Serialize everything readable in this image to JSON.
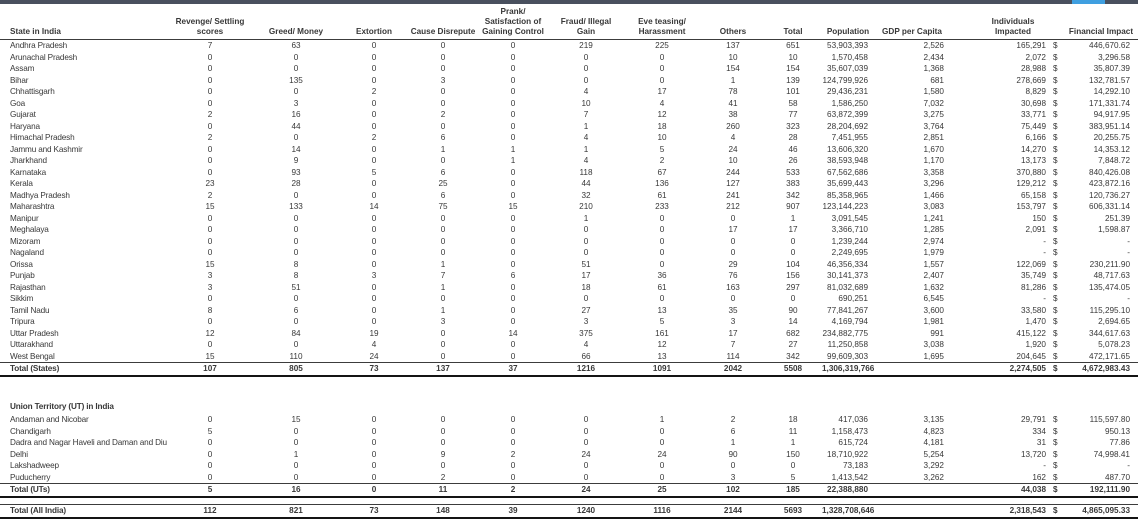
{
  "topbar": {
    "bar_color": "#49505e",
    "thumb_color": "#3f9fe0"
  },
  "currency_symbol": "$",
  "table": {
    "columns": [
      "State in India",
      "Revenge/ Settling scores",
      "Greed/ Money",
      "Extortion",
      "Cause Disrepute",
      "Prank/ Satisfaction of Gaining Control",
      "Fraud/ Illegal Gain",
      "Eve teasing/ Harassment",
      "Others",
      "Total",
      "Population",
      "GDP per Capita",
      "Individuals Impacted",
      "Financial Impact"
    ],
    "states": {
      "rows": [
        [
          "Andhra Pradesh",
          "7",
          "63",
          "0",
          "0",
          "0",
          "219",
          "225",
          "137",
          "651",
          "53,903,393",
          "2,526",
          "165,291",
          "446,670.62"
        ],
        [
          "Arunachal Pradesh",
          "0",
          "0",
          "0",
          "0",
          "0",
          "0",
          "0",
          "10",
          "10",
          "1,570,458",
          "2,434",
          "2,072",
          "3,296.58"
        ],
        [
          "Assam",
          "0",
          "0",
          "0",
          "0",
          "0",
          "0",
          "0",
          "154",
          "154",
          "35,607,039",
          "1,368",
          "28,988",
          "35,807.39"
        ],
        [
          "Bihar",
          "0",
          "135",
          "0",
          "3",
          "0",
          "0",
          "0",
          "1",
          "139",
          "124,799,926",
          "681",
          "278,669",
          "132,781.57"
        ],
        [
          "Chhattisgarh",
          "0",
          "0",
          "2",
          "0",
          "0",
          "4",
          "17",
          "78",
          "101",
          "29,436,231",
          "1,580",
          "8,829",
          "14,292.10"
        ],
        [
          "Goa",
          "0",
          "3",
          "0",
          "0",
          "0",
          "10",
          "4",
          "41",
          "58",
          "1,586,250",
          "7,032",
          "30,698",
          "171,331.74"
        ],
        [
          "Gujarat",
          "2",
          "16",
          "0",
          "2",
          "0",
          "7",
          "12",
          "38",
          "77",
          "63,872,399",
          "3,275",
          "33,771",
          "94,917.95"
        ],
        [
          "Haryana",
          "0",
          "44",
          "0",
          "0",
          "0",
          "1",
          "18",
          "260",
          "323",
          "28,204,692",
          "3,764",
          "75,449",
          "383,951.14"
        ],
        [
          "Himachal Pradesh",
          "2",
          "0",
          "2",
          "6",
          "0",
          "4",
          "10",
          "4",
          "28",
          "7,451,955",
          "2,851",
          "6,166",
          "20,255.75"
        ],
        [
          "Jammu and Kashmir",
          "0",
          "14",
          "0",
          "1",
          "1",
          "1",
          "5",
          "24",
          "46",
          "13,606,320",
          "1,670",
          "14,270",
          "14,353.12"
        ],
        [
          "Jharkhand",
          "0",
          "9",
          "0",
          "0",
          "1",
          "4",
          "2",
          "10",
          "26",
          "38,593,948",
          "1,170",
          "13,173",
          "7,848.72"
        ],
        [
          "Karnataka",
          "0",
          "93",
          "5",
          "6",
          "0",
          "118",
          "67",
          "244",
          "533",
          "67,562,686",
          "3,358",
          "370,880",
          "840,426.08"
        ],
        [
          "Kerala",
          "23",
          "28",
          "0",
          "25",
          "0",
          "44",
          "136",
          "127",
          "383",
          "35,699,443",
          "3,296",
          "129,212",
          "423,872.16"
        ],
        [
          "Madhya Pradesh",
          "2",
          "0",
          "0",
          "6",
          "0",
          "32",
          "61",
          "241",
          "342",
          "85,358,965",
          "1,466",
          "65,158",
          "120,736.27"
        ],
        [
          "Maharashtra",
          "15",
          "133",
          "14",
          "75",
          "15",
          "210",
          "233",
          "212",
          "907",
          "123,144,223",
          "3,083",
          "153,797",
          "606,331.14"
        ],
        [
          "Manipur",
          "0",
          "0",
          "0",
          "0",
          "0",
          "1",
          "0",
          "0",
          "1",
          "3,091,545",
          "1,241",
          "150",
          "251.39"
        ],
        [
          "Meghalaya",
          "0",
          "0",
          "0",
          "0",
          "0",
          "0",
          "0",
          "17",
          "17",
          "3,366,710",
          "1,285",
          "2,091",
          "1,598.87"
        ],
        [
          "Mizoram",
          "0",
          "0",
          "0",
          "0",
          "0",
          "0",
          "0",
          "0",
          "0",
          "1,239,244",
          "2,974",
          "-",
          "-"
        ],
        [
          "Nagaland",
          "0",
          "0",
          "0",
          "0",
          "0",
          "0",
          "0",
          "0",
          "0",
          "2,249,695",
          "1,979",
          "-",
          "-"
        ],
        [
          "Orissa",
          "15",
          "8",
          "0",
          "1",
          "0",
          "51",
          "0",
          "29",
          "104",
          "46,356,334",
          "1,557",
          "122,069",
          "230,211.90"
        ],
        [
          "Punjab",
          "3",
          "8",
          "3",
          "7",
          "6",
          "17",
          "36",
          "76",
          "156",
          "30,141,373",
          "2,407",
          "35,749",
          "48,717.63"
        ],
        [
          "Rajasthan",
          "3",
          "51",
          "0",
          "1",
          "0",
          "18",
          "61",
          "163",
          "297",
          "81,032,689",
          "1,632",
          "81,286",
          "135,474.05"
        ],
        [
          "Sikkim",
          "0",
          "0",
          "0",
          "0",
          "0",
          "0",
          "0",
          "0",
          "0",
          "690,251",
          "6,545",
          "-",
          "-"
        ],
        [
          "Tamil Nadu",
          "8",
          "6",
          "0",
          "1",
          "0",
          "27",
          "13",
          "35",
          "90",
          "77,841,267",
          "3,600",
          "33,580",
          "115,295.10"
        ],
        [
          "Tripura",
          "0",
          "0",
          "0",
          "3",
          "0",
          "3",
          "5",
          "3",
          "14",
          "4,169,794",
          "1,981",
          "1,470",
          "2,694.65"
        ],
        [
          "Uttar Pradesh",
          "12",
          "84",
          "19",
          "0",
          "14",
          "375",
          "161",
          "17",
          "682",
          "234,882,775",
          "991",
          "415,122",
          "344,617.63"
        ],
        [
          "Uttarakhand",
          "0",
          "0",
          "4",
          "0",
          "0",
          "4",
          "12",
          "7",
          "27",
          "11,250,858",
          "3,038",
          "1,920",
          "5,078.23"
        ],
        [
          "West Bengal",
          "15",
          "110",
          "24",
          "0",
          "0",
          "66",
          "13",
          "114",
          "342",
          "99,609,303",
          "1,695",
          "204,645",
          "472,171.65"
        ]
      ],
      "total": [
        "Total (States)",
        "107",
        "805",
        "73",
        "137",
        "37",
        "1216",
        "1091",
        "2042",
        "5508",
        "1,306,319,766",
        "",
        "2,274,505",
        "4,672,983.43"
      ]
    },
    "ut": {
      "section_label": "Union Territory (UT) in India",
      "rows": [
        [
          "Andaman and Nicobar",
          "0",
          "15",
          "0",
          "0",
          "0",
          "0",
          "1",
          "2",
          "18",
          "417,036",
          "3,135",
          "29,791",
          "115,597.80"
        ],
        [
          "Chandigarh",
          "5",
          "0",
          "0",
          "0",
          "0",
          "0",
          "0",
          "6",
          "11",
          "1,158,473",
          "4,823",
          "334",
          "950.13"
        ],
        [
          "Dadra and Nagar Haveli and Daman and Diu",
          "0",
          "0",
          "0",
          "0",
          "0",
          "0",
          "0",
          "1",
          "1",
          "615,724",
          "4,181",
          "31",
          "77.86"
        ],
        [
          "Delhi",
          "0",
          "1",
          "0",
          "9",
          "2",
          "24",
          "24",
          "90",
          "150",
          "18,710,922",
          "5,254",
          "13,720",
          "74,998.41"
        ],
        [
          "Lakshadweep",
          "0",
          "0",
          "0",
          "0",
          "0",
          "0",
          "0",
          "0",
          "0",
          "73,183",
          "3,292",
          "-",
          "-"
        ],
        [
          "Puducherry",
          "0",
          "0",
          "0",
          "2",
          "0",
          "0",
          "0",
          "3",
          "5",
          "1,413,542",
          "3,262",
          "162",
          "487.70"
        ]
      ],
      "total": [
        "Total (UTs)",
        "5",
        "16",
        "0",
        "11",
        "2",
        "24",
        "25",
        "102",
        "185",
        "22,388,880",
        "",
        "44,038",
        "192,111.90"
      ]
    },
    "grand_total": [
      "Total (All India)",
      "112",
      "821",
      "73",
      "148",
      "39",
      "1240",
      "1116",
      "2144",
      "5693",
      "1,328,708,646",
      "",
      "2,318,543",
      "4,865,095.33"
    ]
  }
}
